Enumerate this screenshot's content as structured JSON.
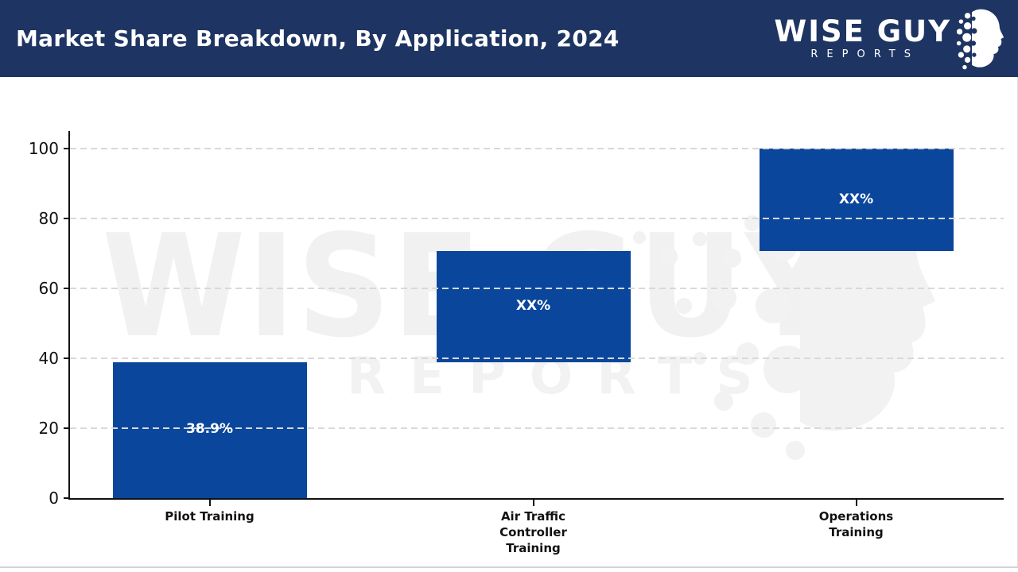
{
  "header": {
    "title": "Market Share Breakdown, By Application, 2024",
    "bg_color": "#1e3563",
    "logo": {
      "line1": "WISE GUY",
      "line2": "REPORTS"
    }
  },
  "watermark": {
    "line1": "WISE GUY",
    "line2": "REPORTS"
  },
  "chart_data": {
    "type": "bar",
    "subtype": "waterfall",
    "title": "Market Share Breakdown, By Application, 2024",
    "xlabel": "",
    "ylabel": "",
    "ylim": [
      0,
      100
    ],
    "yticks": [
      0,
      20,
      40,
      60,
      80,
      100
    ],
    "grid": "horizontal-dashed",
    "legend": "none",
    "bar_color": "#0a469c",
    "bar_label_color": "#ffffff",
    "categories": [
      "Pilot Training",
      "Air Traffic Controller Training",
      "Operations Training"
    ],
    "category_lines": [
      [
        "Pilot Training"
      ],
      [
        "Air Traffic",
        "Controller",
        "Training"
      ],
      [
        "Operations",
        "Training"
      ]
    ],
    "segments": [
      {
        "category": "Pilot Training",
        "start": 0,
        "end": 38.9,
        "label": "38.9%"
      },
      {
        "category": "Air Traffic Controller Training",
        "start": 38.9,
        "end": 70.6,
        "label": "XX%"
      },
      {
        "category": "Operations Training",
        "start": 70.6,
        "end": 100,
        "label": "XX%"
      }
    ]
  }
}
